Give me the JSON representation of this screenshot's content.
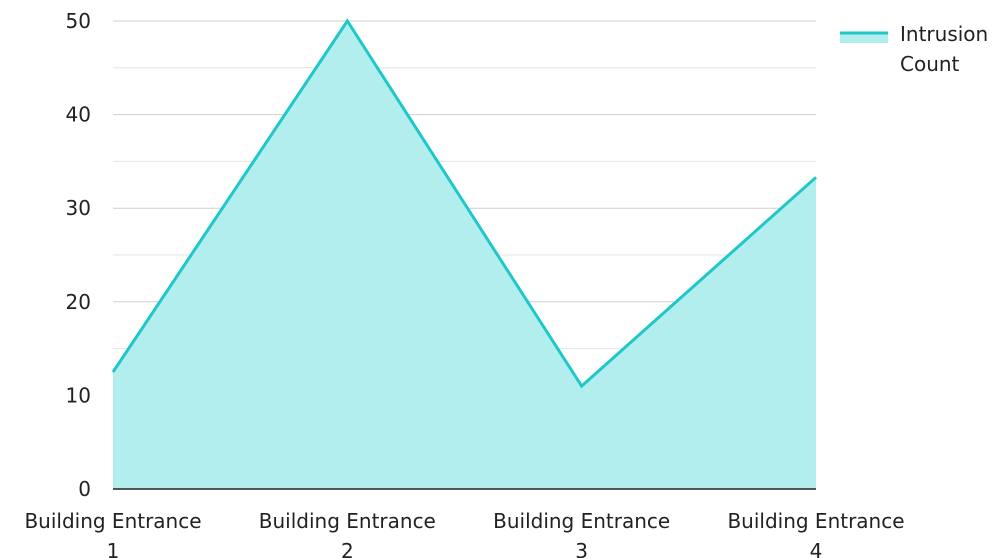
{
  "chart_data": {
    "type": "area",
    "categories": [
      [
        "Building Entrance",
        "1"
      ],
      [
        "Building Entrance",
        "2"
      ],
      [
        "Building Entrance",
        "3"
      ],
      [
        "Building Entrance",
        "4"
      ]
    ],
    "series": [
      {
        "name": [
          "Intrusion",
          "Count"
        ],
        "values": [
          12.5,
          50,
          11,
          33.3
        ],
        "line_color": "#1ec8c8",
        "fill_color": "#b2eeee"
      }
    ],
    "ylim": [
      0,
      50
    ],
    "yticks": [
      0,
      10,
      20,
      30,
      40,
      50
    ],
    "ytick_labels": [
      "0",
      "10",
      "20",
      "30",
      "40",
      "50"
    ],
    "grid": true,
    "legend_position": "top-right",
    "title": "",
    "xlabel": "",
    "ylabel": ""
  }
}
